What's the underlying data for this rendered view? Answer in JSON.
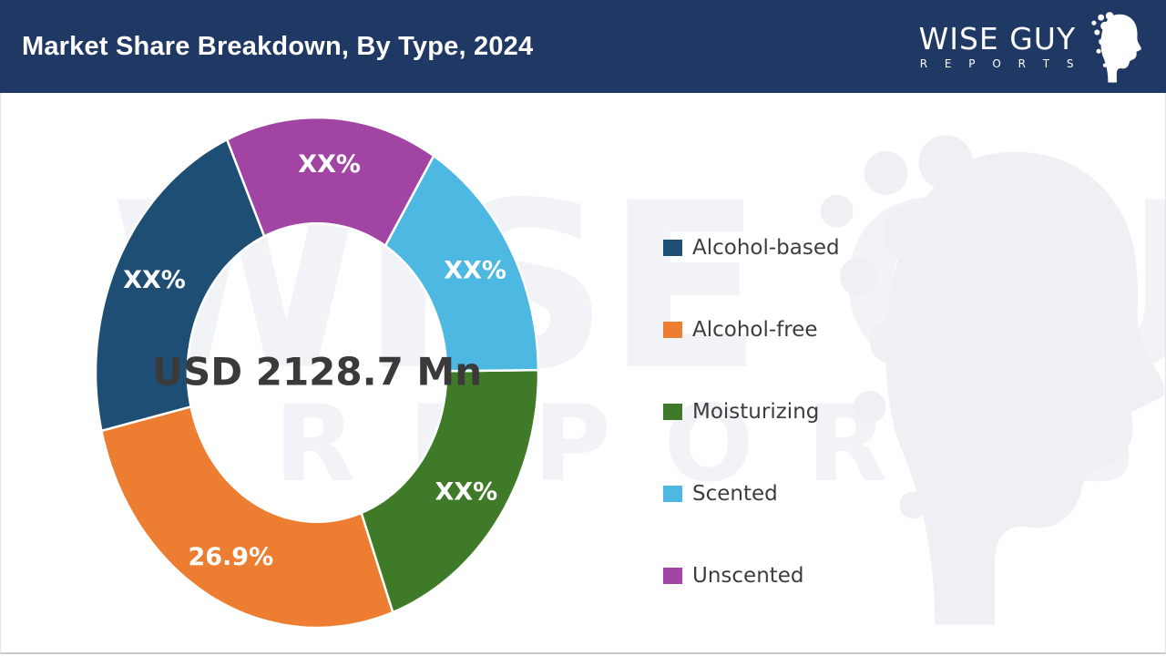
{
  "header": {
    "title": "Market Share Breakdown, By Type, 2024"
  },
  "logo": {
    "name": "WISE GUY",
    "subtitle": "R E P O R T S"
  },
  "watermark": {
    "line1": "WISE GUY",
    "line2": "REPORTS"
  },
  "colors": {
    "header_bg": "#1f3864",
    "center_text": "#3a3a3a",
    "legend_text": "#3d3d3d",
    "watermark_text": "#f2f3f6",
    "watermark_face": "#eef0f3",
    "segment_gap": "#ffffff"
  },
  "chart_data": {
    "type": "pie",
    "subtype": "donut",
    "title": "Market Share Breakdown, By Type, 2024",
    "center_label": "USD 2128.7 Mn",
    "legend_position": "right",
    "inner_radius_ratio": 0.585,
    "start_clock_angle_deg": -24,
    "direction": "counterclockwise",
    "label_radius_ratio": 0.82,
    "segments": [
      {
        "label": "Alcohol-based",
        "displayed_value": "XX%",
        "value_pct": 22.0,
        "color": "#1f4e74"
      },
      {
        "label": "Alcohol-free",
        "displayed_value": "26.9%",
        "value_pct": 26.9,
        "color": "#ed7d31"
      },
      {
        "label": "Moisturizing",
        "displayed_value": "XX%",
        "value_pct": 19.6,
        "color": "#3e7a27"
      },
      {
        "label": "Scented",
        "displayed_value": "XX%",
        "value_pct": 16.0,
        "color": "#4db8e2"
      },
      {
        "label": "Unscented",
        "displayed_value": "XX%",
        "value_pct": 15.5,
        "color": "#a144a4"
      }
    ]
  }
}
